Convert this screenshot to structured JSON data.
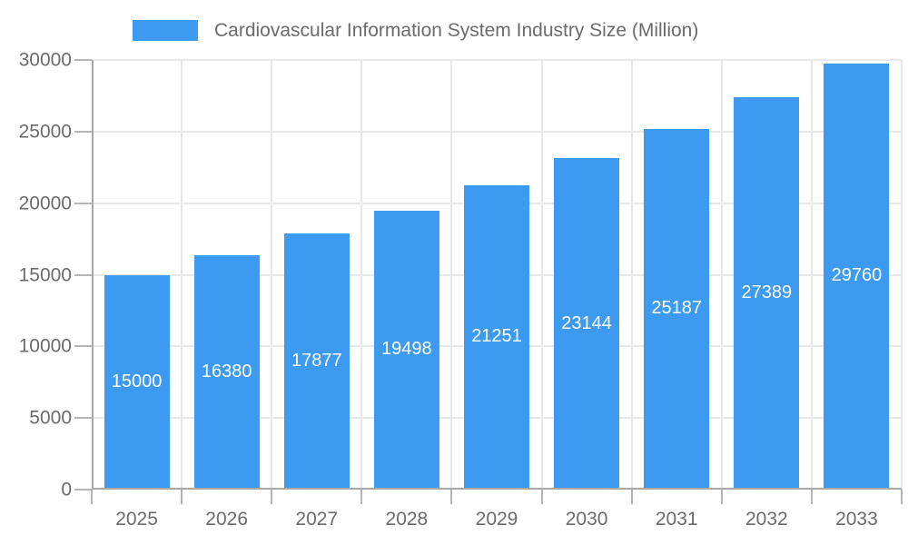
{
  "chart_data": {
    "type": "bar",
    "title": "Cardiovascular Information System Industry Size (Million)",
    "categories": [
      "2025",
      "2026",
      "2027",
      "2028",
      "2029",
      "2030",
      "2031",
      "2032",
      "2033"
    ],
    "values": [
      15000,
      16380,
      17877,
      19498,
      21251,
      23144,
      25187,
      27389,
      29760
    ],
    "xlabel": "",
    "ylabel": "",
    "ylim": [
      0,
      30000
    ],
    "yticks": [
      0,
      5000,
      10000,
      15000,
      20000,
      25000,
      30000
    ],
    "grid": true,
    "legend_position": "top",
    "value_label_position": "inside-center",
    "colors": {
      "bar": "#3C9AF0",
      "grid": "#e8e8e8",
      "axis": "#a8a8a8",
      "tick": "#b5b5b5",
      "text": "#6b6b6b",
      "value_label": "#ffffff"
    }
  }
}
